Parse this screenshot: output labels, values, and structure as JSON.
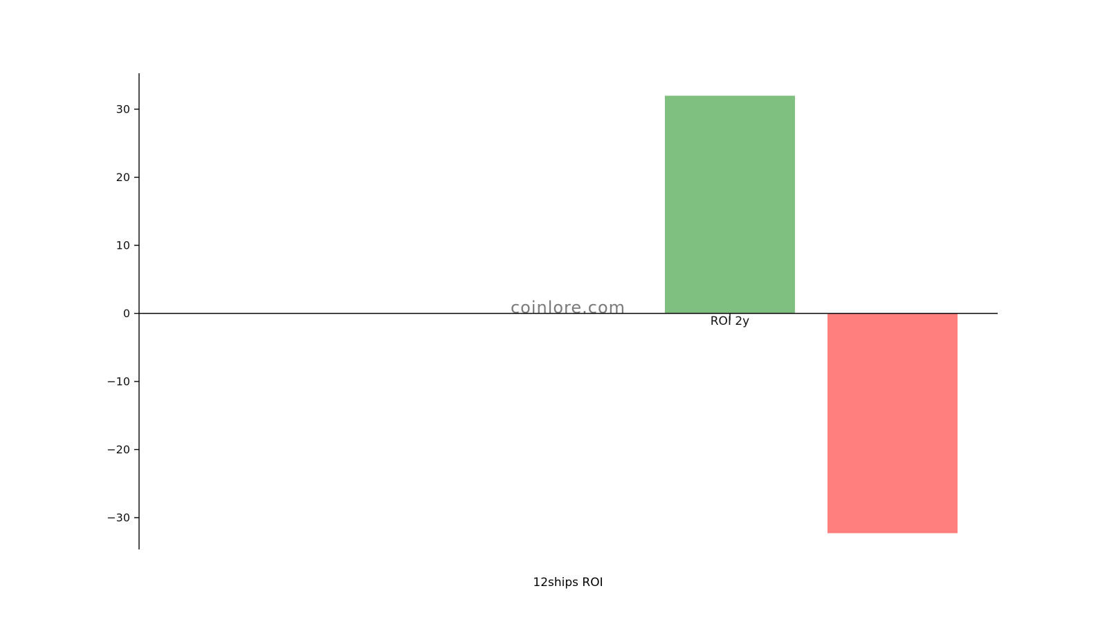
{
  "chart_data": {
    "type": "bar",
    "title": "",
    "xlabel": "12ships ROI",
    "ylabel": "",
    "watermark": "coinlore.com",
    "categories": [
      "ROI 2y",
      ""
    ],
    "values": [
      32,
      -32.3
    ],
    "bar_colors": [
      "#7fbf7f",
      "#ff7f7f"
    ],
    "positive_color": "#7fbf7f",
    "negative_color": "#ff7f7f",
    "yticks": [
      30,
      20,
      10,
      0,
      -10,
      -20,
      -30
    ],
    "ytick_labels": [
      "30",
      "20",
      "10",
      "0",
      "−10",
      "−20",
      "−30"
    ],
    "ylim": [
      -35,
      35.5
    ],
    "grid": false,
    "legend_position": "none",
    "axis_color": "#000000",
    "tick_label_color": "#111111",
    "watermark_color": "#7b7b7b",
    "background_color": "#ffffff"
  }
}
